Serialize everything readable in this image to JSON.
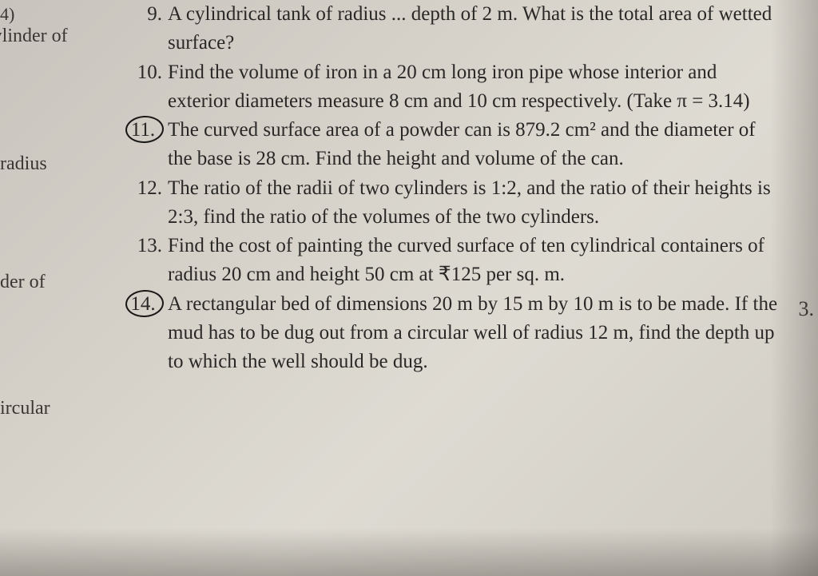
{
  "leftMargin": {
    "item4": "4)",
    "cylinder": "cylinder of",
    "radius": "radius",
    "der": "der of",
    "ircular": "ircular"
  },
  "rightMargin": {
    "three": "3."
  },
  "questions": {
    "q9": {
      "number": "9.",
      "text": "A cylindrical tank of radius ... depth of 2 m. What is the total area of wetted surface?"
    },
    "q10": {
      "number": "10.",
      "text": "Find the volume of iron in a 20 cm long iron pipe whose interior and exterior diameters measure 8 cm and 10 cm respectively. (Take π = 3.14)"
    },
    "q11": {
      "number": "11.",
      "text": "The curved surface area of a powder can is 879.2 cm² and the diameter of the base is 28 cm. Find the height and volume of the can."
    },
    "q12": {
      "number": "12.",
      "text": "The ratio of the radii of two cylinders is 1:2, and the ratio of their heights is 2:3, find the ratio of the volumes of the two cylinders."
    },
    "q13": {
      "number": "13.",
      "text": "Find the cost of painting the curved surface of ten cylindrical containers of radius 20 cm and height 50 cm at ₹125 per sq. m."
    },
    "q14": {
      "number": "14.",
      "text": "A rectangular bed of dimensions 20 m by 15 m by 10 m is to be made. If the mud has to be dug out from a circular well of radius 12 m, find the depth up to which the well should be dug."
    }
  }
}
